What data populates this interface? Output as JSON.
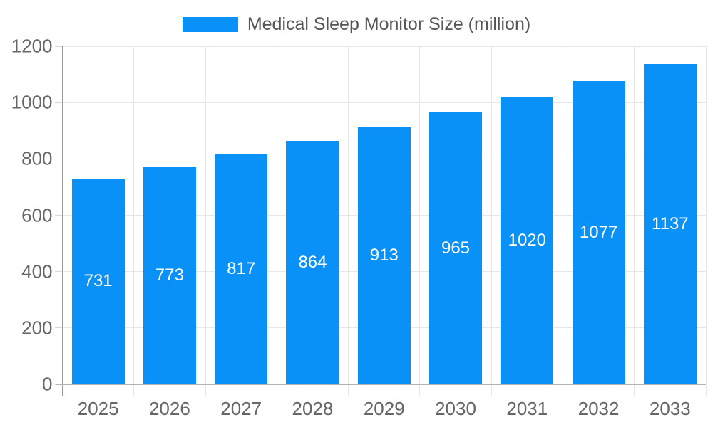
{
  "legend": {
    "label": "Medical Sleep Monitor Size (million)",
    "swatch_color": "#0a91f7"
  },
  "chart_data": {
    "type": "bar",
    "title": "Medical Sleep Monitor Size (million)",
    "categories": [
      "2025",
      "2026",
      "2027",
      "2028",
      "2029",
      "2030",
      "2031",
      "2032",
      "2033"
    ],
    "values": [
      731,
      773,
      817,
      864,
      913,
      965,
      1020,
      1077,
      1137
    ],
    "series": [
      {
        "name": "Medical Sleep Monitor Size (million)",
        "values": [
          731,
          773,
          817,
          864,
          913,
          965,
          1020,
          1077,
          1137
        ]
      }
    ],
    "xlabel": "",
    "ylabel": "",
    "ylim": [
      0,
      1200
    ],
    "yticks": [
      0,
      200,
      400,
      600,
      800,
      1000,
      1200
    ],
    "grid": true,
    "legend_position": "top-center",
    "bar_color": "#0a91f7",
    "value_label_color": "#ffffff",
    "axis_label_color": "#666666",
    "value_labels_shown": true,
    "value_label_position": "middle-of-bar"
  }
}
